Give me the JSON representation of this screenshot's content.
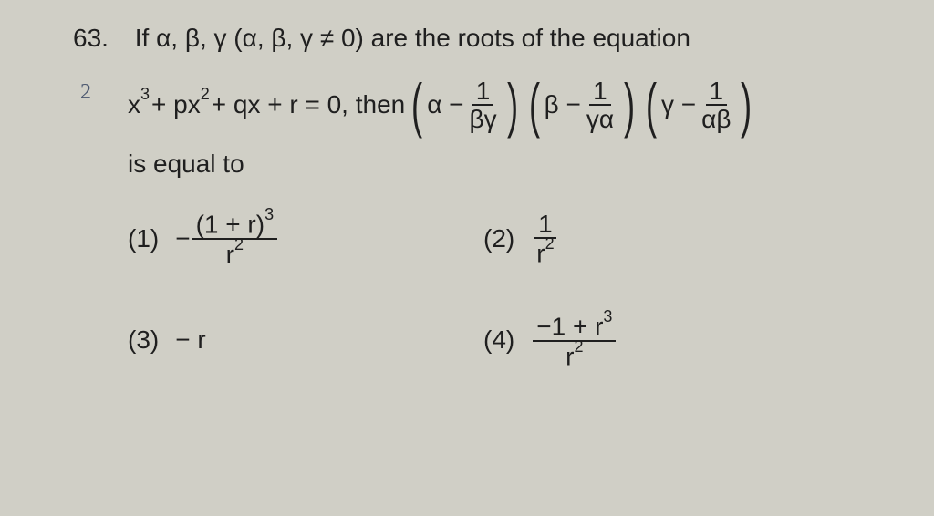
{
  "background_color": "#d0cfc6",
  "text_color": "#1f1f1f",
  "annotation_color": "#4a566e",
  "question_number": "63.",
  "handwritten_mark": "2",
  "line1": "If α, β, γ (α, β, γ ≠ 0) are the roots of the equation",
  "eq_lhs": "x",
  "eq_sup3": "3",
  "eq_px": "+ px",
  "eq_sup2": "2",
  "eq_plus_qx_r": "+ qx + r = 0, then ",
  "term_alpha": "α −",
  "term_beta": "β −",
  "term_gamma": "γ −",
  "one": "1",
  "bg_den": "βγ",
  "ga_den": "γα",
  "ab_den": "αβ",
  "line3": "is equal to",
  "options": {
    "o1": {
      "label": "(1)",
      "prefix": "−",
      "num": "(1 + r)",
      "num_sup": "3",
      "den": "r",
      "den_sup": "2"
    },
    "o2": {
      "label": "(2)",
      "num": "1",
      "den": "r",
      "den_sup": "2"
    },
    "o3": {
      "label": "(3)",
      "text": "− r"
    },
    "o4": {
      "label": "(4)",
      "num": "−1 + r",
      "num_sup": "3",
      "den": "r",
      "den_sup": "2"
    }
  }
}
